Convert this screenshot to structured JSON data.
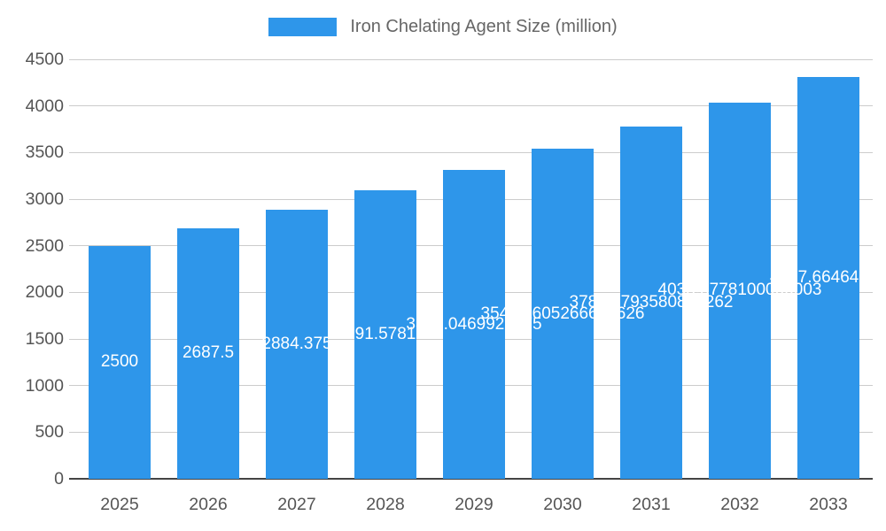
{
  "chart_data": {
    "type": "bar",
    "title": "Iron Chelating Agent Size (million)",
    "categories": [
      "2025",
      "2026",
      "2027",
      "2028",
      "2029",
      "2030",
      "2031",
      "2032",
      "2033"
    ],
    "values": [
      2500,
      2687.5,
      2884.375,
      3091.578125,
      3310.0469921875,
      3540.8605266675627,
      3782.7793580893263,
      4038.8778100000004,
      4307.66464517
    ],
    "value_labels": [
      "2500",
      "2687.5",
      "2884.375",
      "3091.578125",
      "3310.0469921875",
      "3540.8605266675626",
      "3782.7793580893262",
      "4038.8778100000003",
      "4307.66464517"
    ],
    "xlabel": "",
    "ylabel": "",
    "ylim": [
      0,
      4500
    ],
    "ytick_step": 500,
    "ytick_labels": [
      "0",
      "500",
      "1000",
      "1500",
      "2000",
      "2500",
      "3000",
      "3500",
      "4000",
      "4500"
    ],
    "grid": true,
    "legend_position": "top-center",
    "colors": {
      "bar": "#2E96EA",
      "grid": "#cccccc",
      "axis_line": "#444444",
      "tick_text": "#555555",
      "legend_text": "#666666",
      "data_label_text": "#ffffff",
      "background": "#ffffff"
    }
  }
}
